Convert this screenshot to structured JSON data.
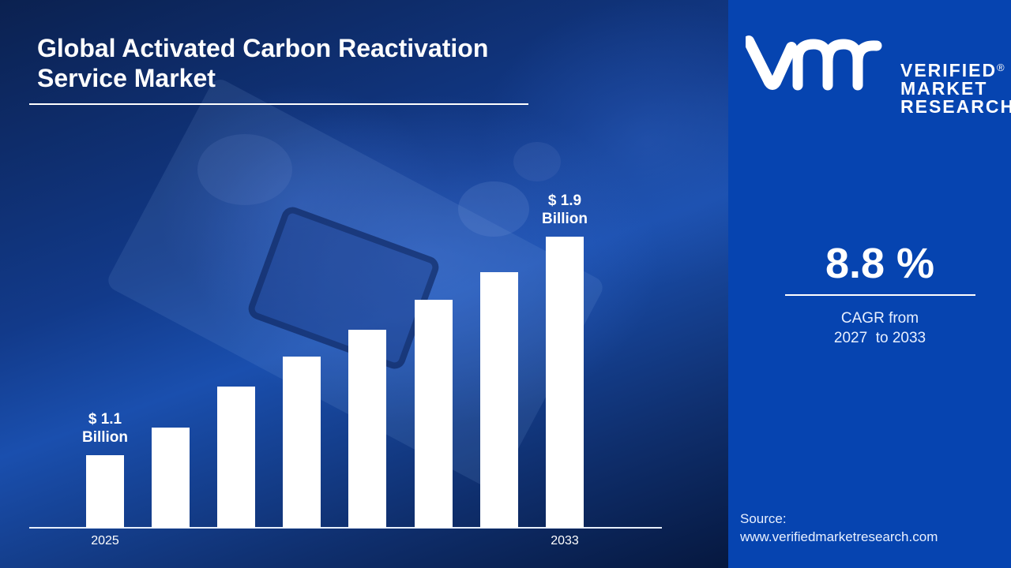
{
  "title": {
    "line1": "Global Activated Carbon Reactivation",
    "line2": "Service Market"
  },
  "brand": {
    "logo_mark": "vmr",
    "line1": "VERIFIED",
    "line2": "MARKET",
    "line3": "RESEARCH",
    "registered": "®"
  },
  "cagr": {
    "value": "8.8 %",
    "label_line1": "CAGR from",
    "label_line2": "2027  to 2033"
  },
  "source": {
    "label": "Source:",
    "url": "www.verifiedmarketresearch.com"
  },
  "colors": {
    "panel_blue": "#0644b0",
    "bar": "#ffffff",
    "background_dark": "#0b2150"
  },
  "chart_data": {
    "type": "bar",
    "title": "Global Activated Carbon Reactivation Service Market",
    "xlabel": "",
    "ylabel": "",
    "unit": "USD Billion",
    "categories": [
      "2025",
      "",
      "",
      "",
      "",
      "",
      "",
      "2033"
    ],
    "values": [
      1.1,
      1.2,
      1.35,
      1.46,
      1.56,
      1.67,
      1.77,
      1.9
    ],
    "data_labels": [
      {
        "index": 0,
        "line1": "$ 1.1",
        "line2": "Billion"
      },
      {
        "index": 7,
        "line1": "$ 1.9",
        "line2": "Billion"
      }
    ],
    "grid": false,
    "legend": "none",
    "annotation": "8.8 % CAGR from 2027 to 2033"
  }
}
